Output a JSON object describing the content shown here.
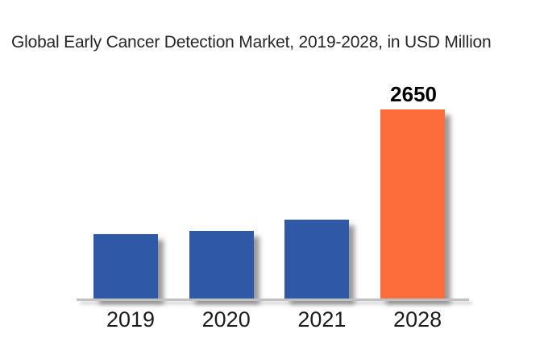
{
  "chart_data": {
    "type": "bar",
    "title": "Global Early Cancer Detection Market, 2019-2028, in USD Million",
    "categories": [
      "2019",
      "2020",
      "2021",
      "2028"
    ],
    "values": [
      900,
      950,
      1100,
      2650
    ],
    "data_labels": [
      "",
      "",
      "",
      "2650"
    ],
    "highlight_index": 3,
    "xlabel": "",
    "ylabel": "",
    "ylim": [
      0,
      2650
    ],
    "grid": false,
    "legend": false,
    "colors": {
      "bar": "#2F59A6",
      "highlight_bar": "#FD6D3C",
      "axis_line": "#C1C1C1",
      "title_text": "#262626",
      "tick_text": "#1C1C1C",
      "data_label_text": "#000000"
    }
  }
}
